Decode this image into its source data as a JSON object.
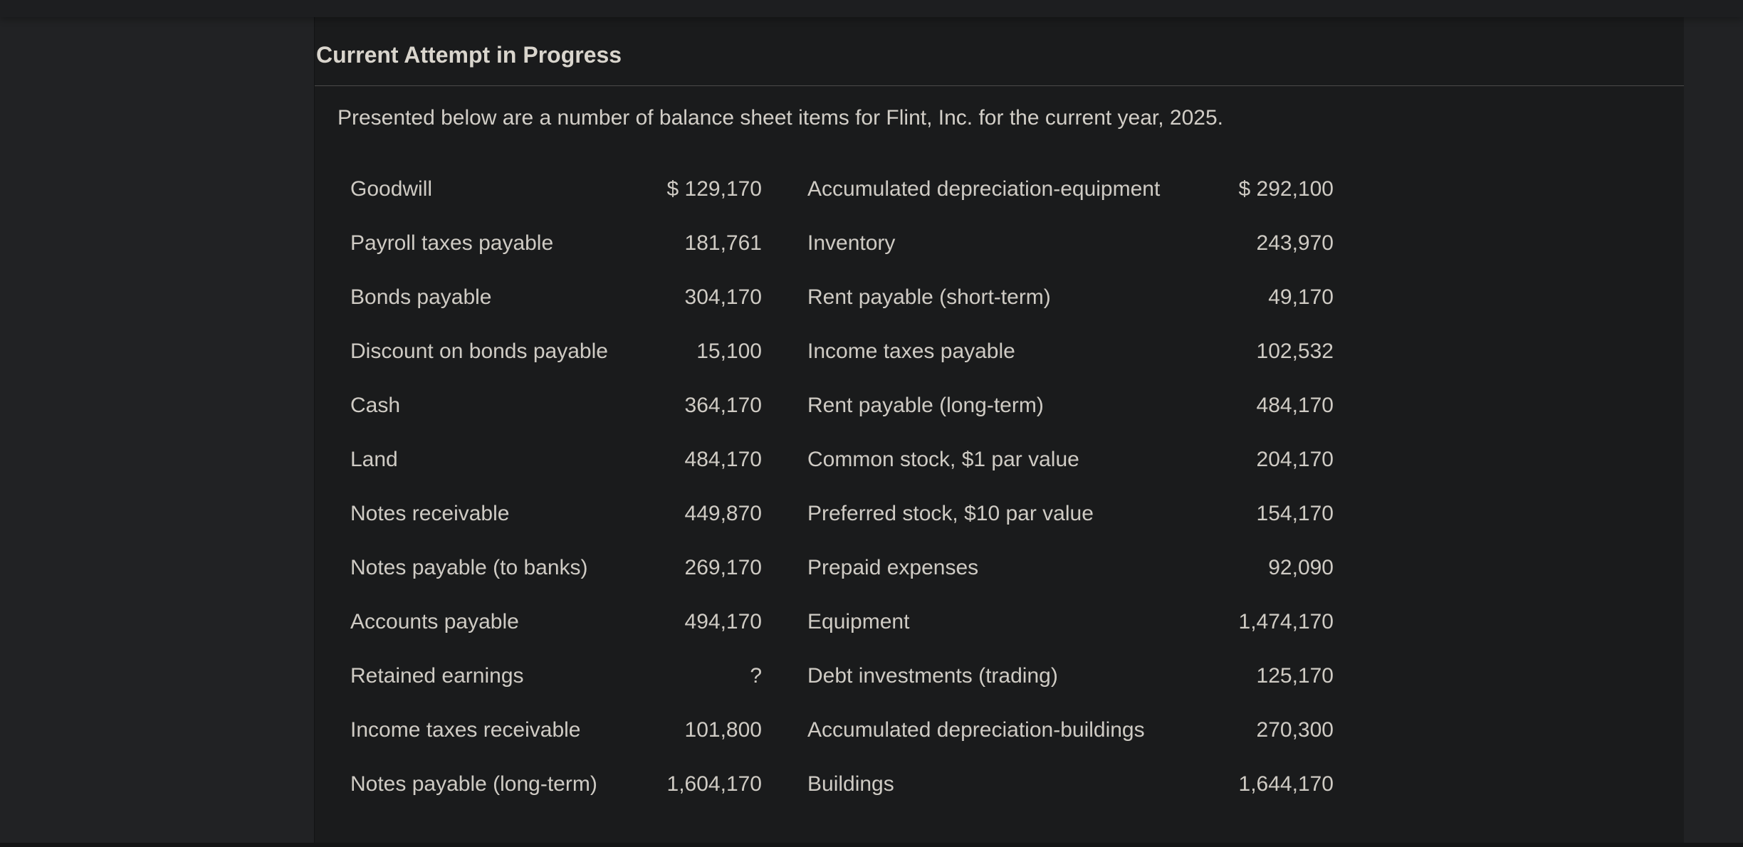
{
  "header": {
    "title": "Current Attempt in Progress"
  },
  "intro": {
    "text": "Presented below are a number of balance sheet items for Flint, Inc. for the current year, 2025."
  },
  "table": {
    "rows": [
      [
        "Goodwill",
        "$ 129,170",
        "Accumulated depreciation-equipment",
        "$ 292,100"
      ],
      [
        "Payroll taxes payable",
        "181,761",
        "Inventory",
        "243,970"
      ],
      [
        "Bonds payable",
        "304,170",
        "Rent payable (short-term)",
        "49,170"
      ],
      [
        "Discount on bonds payable",
        "15,100",
        "Income taxes payable",
        "102,532"
      ],
      [
        "Cash",
        "364,170",
        "Rent payable (long-term)",
        "484,170"
      ],
      [
        "Land",
        "484,170",
        "Common stock, $1 par value",
        "204,170"
      ],
      [
        "Notes receivable",
        "449,870",
        "Preferred stock, $10 par value",
        "154,170"
      ],
      [
        "Notes payable (to banks)",
        "269,170",
        "Prepaid expenses",
        "92,090"
      ],
      [
        "Accounts payable",
        "494,170",
        "Equipment",
        "1,474,170"
      ],
      [
        "Retained earnings",
        "?",
        "Debt investments (trading)",
        "125,170"
      ],
      [
        "Income taxes receivable",
        "101,800",
        "Accumulated depreciation-buildings",
        "270,300"
      ],
      [
        "Notes payable (long-term)",
        "1,604,170",
        "Buildings",
        "1,644,170"
      ]
    ]
  },
  "colors": {
    "page_bg": "#212224",
    "panel_bg": "#1a1b1c",
    "topbar_bg": "#1d1e20",
    "divider": "#4b4b4b",
    "heading_text": "#d9d5cd",
    "body_text": "#cfcbc4"
  }
}
